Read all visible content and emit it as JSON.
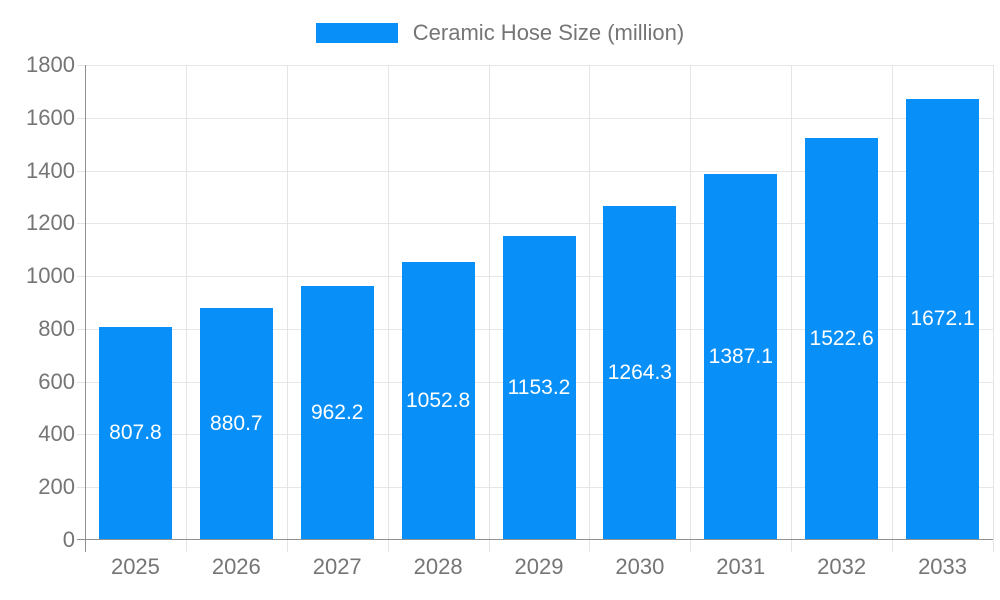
{
  "legend": {
    "label": "Ceramic Hose Size (million)"
  },
  "colors": {
    "bar": "#0890f8",
    "grid": "#e6e6e6",
    "axis": "#909090",
    "tick_text": "#757575",
    "value_label": "#ffffff"
  },
  "chart_data": {
    "type": "bar",
    "title": "",
    "legend_entries": [
      "Ceramic Hose Size (million)"
    ],
    "legend_position": "top-center",
    "categories": [
      "2025",
      "2026",
      "2027",
      "2028",
      "2029",
      "2030",
      "2031",
      "2032",
      "2033"
    ],
    "values": [
      807.8,
      880.7,
      962.2,
      1052.8,
      1153.2,
      1264.3,
      1387.1,
      1522.6,
      1672.1
    ],
    "value_labels": "inside-center-white",
    "xlabel": "",
    "ylabel": "",
    "ylim": [
      0,
      1800
    ],
    "ytick_step": 200,
    "grid": true
  }
}
